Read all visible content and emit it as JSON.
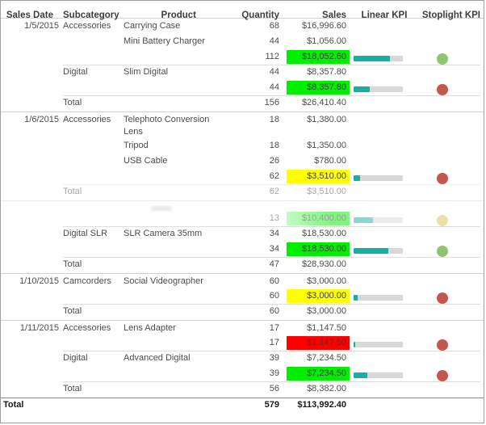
{
  "table": {
    "columns": [
      {
        "label": "Sales Date"
      },
      {
        "label": "Subcategory"
      },
      {
        "label": "Product"
      },
      {
        "label": "Quantity"
      },
      {
        "label": "Sales"
      },
      {
        "label": "Linear KPI"
      },
      {
        "label": "Stoplight KPI"
      }
    ],
    "rows": [
      {
        "type": "detail",
        "date": "1/5/2015",
        "subcategory": "Accessories",
        "product": "Carrying Case",
        "quantity": "68",
        "sales": "$16,996.60"
      },
      {
        "type": "detail",
        "product": "Mini Battery Charger",
        "quantity": "44",
        "sales": "$1,056.00"
      },
      {
        "type": "kpi",
        "quantity": "112",
        "sales": "$18,052.60",
        "sales_bg": "green",
        "bar_pct": 74,
        "dot": "green"
      },
      {
        "type": "detail",
        "subcategory": "Digital",
        "product": "Slim Digital",
        "quantity": "44",
        "sales": "$8,357.80",
        "sep": "sub"
      },
      {
        "type": "kpi",
        "quantity": "44",
        "sales": "$8,357.80",
        "sales_bg": "green",
        "bar_pct": 33,
        "dot": "red"
      },
      {
        "type": "total",
        "label": "Total",
        "quantity": "156",
        "sales": "$26,410.40",
        "sep": "sub"
      },
      {
        "type": "detail",
        "date": "1/6/2015",
        "subcategory": "Accessories",
        "product": "Telephoto Conversion\nLens",
        "quantity": "18",
        "sales": "$1,380.00",
        "sep": "full"
      },
      {
        "type": "detail",
        "product": "Tripod",
        "quantity": "18",
        "sales": "$1,350.00"
      },
      {
        "type": "detail",
        "product": "USB Cable",
        "quantity": "26",
        "sales": "$780.00"
      },
      {
        "type": "kpi",
        "quantity": "62",
        "sales": "$3,510.00",
        "sales_bg": "yellow",
        "bar_pct": 13,
        "dot": "red"
      },
      {
        "type": "total",
        "label": "Total",
        "quantity": "62",
        "sales": "$3,510.00",
        "sep": "sub",
        "faded": true
      },
      {
        "type": "gap",
        "sep": "full",
        "faded": true
      },
      {
        "type": "kpi",
        "quantity": "13",
        "sales": "$10,400.00",
        "sales_bg": "green",
        "bar_pct": 40,
        "dot": "yellow",
        "faded": true
      },
      {
        "type": "detail",
        "subcategory": "Digital SLR",
        "product": "SLR Camera 35mm",
        "quantity": "34",
        "sales": "$18,530.00",
        "sep": "sub"
      },
      {
        "type": "kpi",
        "quantity": "34",
        "sales": "$18,530.00",
        "sales_bg": "green",
        "bar_pct": 70,
        "dot": "green"
      },
      {
        "type": "total",
        "label": "Total",
        "quantity": "47",
        "sales": "$28,930.00",
        "sep": "sub"
      },
      {
        "type": "detail",
        "date": "1/10/2015",
        "subcategory": "Camcorders",
        "product": "Social Videographer",
        "quantity": "60",
        "sales": "$3,000.00",
        "sep": "full"
      },
      {
        "type": "kpi",
        "quantity": "60",
        "sales": "$3,000.00",
        "sales_bg": "yellow",
        "bar_pct": 8,
        "dot": "red"
      },
      {
        "type": "total",
        "label": "Total",
        "quantity": "60",
        "sales": "$3,000.00",
        "sep": "sub"
      },
      {
        "type": "detail",
        "date": "1/11/2015",
        "subcategory": "Accessories",
        "product": "Lens Adapter",
        "quantity": "17",
        "sales": "$1,147.50",
        "sep": "full"
      },
      {
        "type": "kpi",
        "quantity": "17",
        "sales": "$1,147.50",
        "sales_bg": "red",
        "bar_pct": 3,
        "dot": "red"
      },
      {
        "type": "detail",
        "subcategory": "Digital",
        "product": "Advanced Digital",
        "quantity": "39",
        "sales": "$7,234.50",
        "sep": "sub"
      },
      {
        "type": "kpi",
        "quantity": "39",
        "sales": "$7,234.50",
        "sales_bg": "green",
        "bar_pct": 28,
        "dot": "red"
      },
      {
        "type": "total",
        "label": "Total",
        "quantity": "56",
        "sales": "$8,382.00",
        "sep": "sub"
      },
      {
        "type": "grand",
        "label": "Total",
        "quantity": "579",
        "sales": "$113,992.40",
        "sep": "dark"
      }
    ]
  },
  "colors": {
    "cell_green": "#00ef00",
    "cell_yellow": "#ffff00",
    "cell_red": "#ff0000",
    "bar_fill": "#17afa3",
    "bar_track": "#d8d8d8",
    "dot_green": "#8fc471",
    "dot_red": "#c4574e",
    "dot_yellow": "#d8c453"
  }
}
